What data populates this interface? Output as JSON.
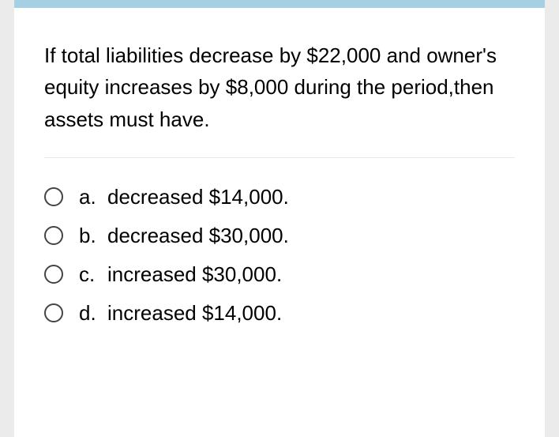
{
  "card": {
    "top_bar_color": "#a5cfe3",
    "background_color": "#ffffff",
    "page_background": "#ebebeb",
    "divider_color": "#e8e8e8"
  },
  "question": {
    "text": "If total liabilities decrease by $22,000 and owner's equity increases by $8,000 during the period,then assets must have.",
    "font_size": 26,
    "color": "#000000"
  },
  "options": [
    {
      "letter": "a.",
      "text": "decreased $14,000."
    },
    {
      "letter": "b.",
      "text": "decreased $30,000."
    },
    {
      "letter": "c.",
      "text": "increased $30,000."
    },
    {
      "letter": "d.",
      "text": "increased $14,000."
    }
  ],
  "radio": {
    "border_color": "#444444",
    "size": 24
  }
}
